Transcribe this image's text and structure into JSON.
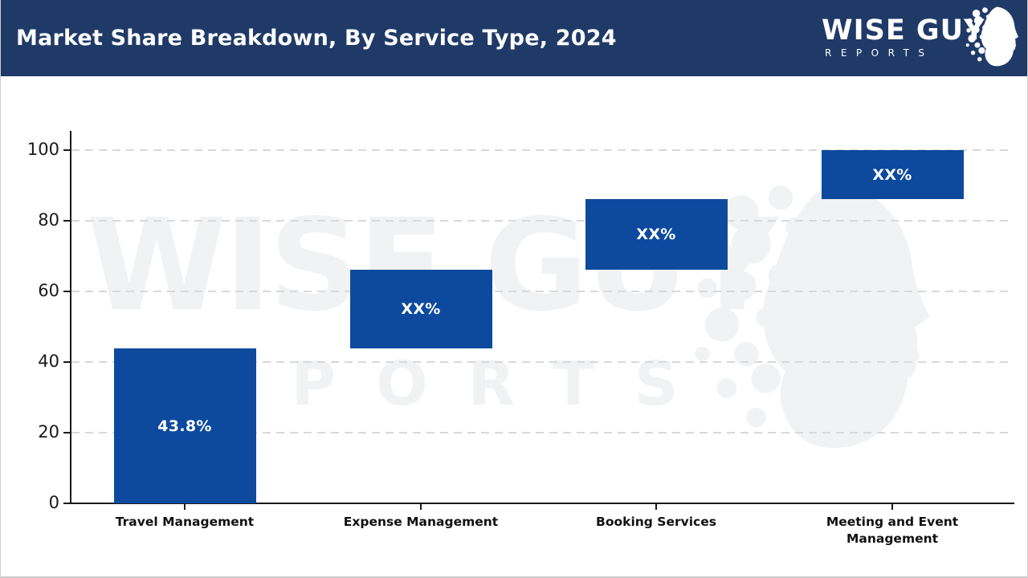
{
  "header": {
    "title": "Market Share Breakdown, By Service Type, 2024",
    "logo": {
      "line1": "WISE GUY",
      "line2": "REPORTS"
    }
  },
  "watermark": {
    "line1": "WISE GUY",
    "line2": "REPORTS"
  },
  "colors": {
    "header_bg": "#203a68",
    "bar": "#0d4a9e",
    "bar_label": "#ffffff",
    "watermark": "#f1f2f4",
    "gridline": "#d9d9d9",
    "axis": "#1a1a1a"
  },
  "chart_data": {
    "type": "bar",
    "variant": "waterfall",
    "title": "Market Share Breakdown, By Service Type, 2024",
    "categories": [
      "Travel Management",
      "Expense Management",
      "Booking Services",
      "Meeting and Event Management"
    ],
    "segments": [
      {
        "category": "Travel Management",
        "label": "43.8%",
        "start": 0,
        "end": 43.8
      },
      {
        "category": "Expense Management",
        "label": "XX%",
        "start": 43.8,
        "end": 66.2
      },
      {
        "category": "Booking Services",
        "label": "XX%",
        "start": 66.2,
        "end": 86.1
      },
      {
        "category": "Meeting and Event Management",
        "label": "XX%",
        "start": 86.1,
        "end": 100
      }
    ],
    "xlabel": "",
    "ylabel": "",
    "yticks": [
      0,
      20,
      40,
      60,
      80,
      100
    ],
    "ylim": [
      0,
      105
    ],
    "grid": "horizontal-dashed",
    "legend": "none",
    "units": "%"
  }
}
